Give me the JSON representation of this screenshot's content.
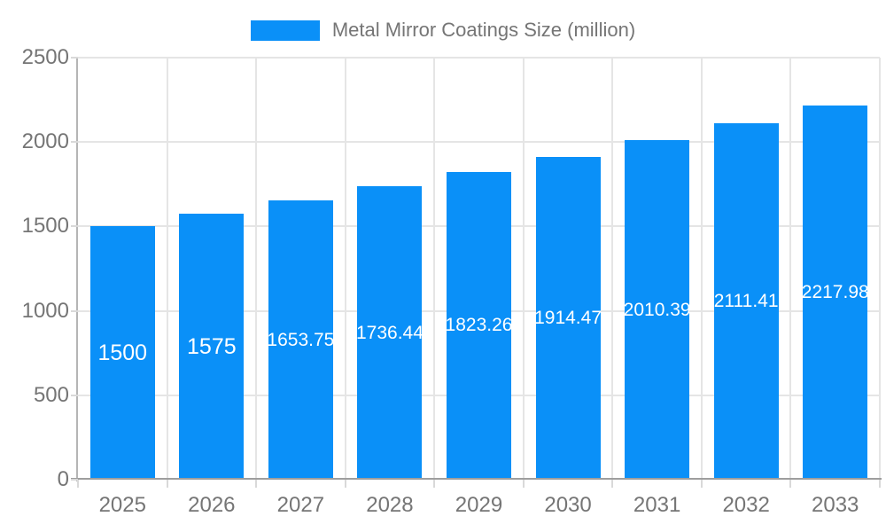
{
  "chart_data": {
    "type": "bar",
    "title": "",
    "legend_label": "Metal Mirror Coatings Size (million)",
    "legend_position": "top-center",
    "categories": [
      "2025",
      "2026",
      "2027",
      "2028",
      "2029",
      "2030",
      "2031",
      "2032",
      "2033"
    ],
    "series": [
      {
        "name": "Metal Mirror Coatings Size (million)",
        "values": [
          1500,
          1575,
          1653.75,
          1736.44,
          1823.26,
          1914.47,
          2010.39,
          2111.41,
          2217.98
        ]
      }
    ],
    "value_labels": [
      "1500",
      "1575",
      "1653.75",
      "1736.44",
      "1823.26",
      "1914.47",
      "2010.39",
      "2111.41",
      "2217.98"
    ],
    "xlabel": "",
    "ylabel": "",
    "ylim": [
      0,
      2500
    ],
    "yticks": [
      0,
      500,
      1000,
      1500,
      2000,
      2500
    ],
    "grid": true,
    "colors": {
      "bar": "#0a90f8",
      "tick_text": "#757575",
      "grid_line": "#e5e5e5",
      "axis_line": "#9e9e9e",
      "value_label": "#ffffff",
      "background": "#ffffff"
    }
  }
}
